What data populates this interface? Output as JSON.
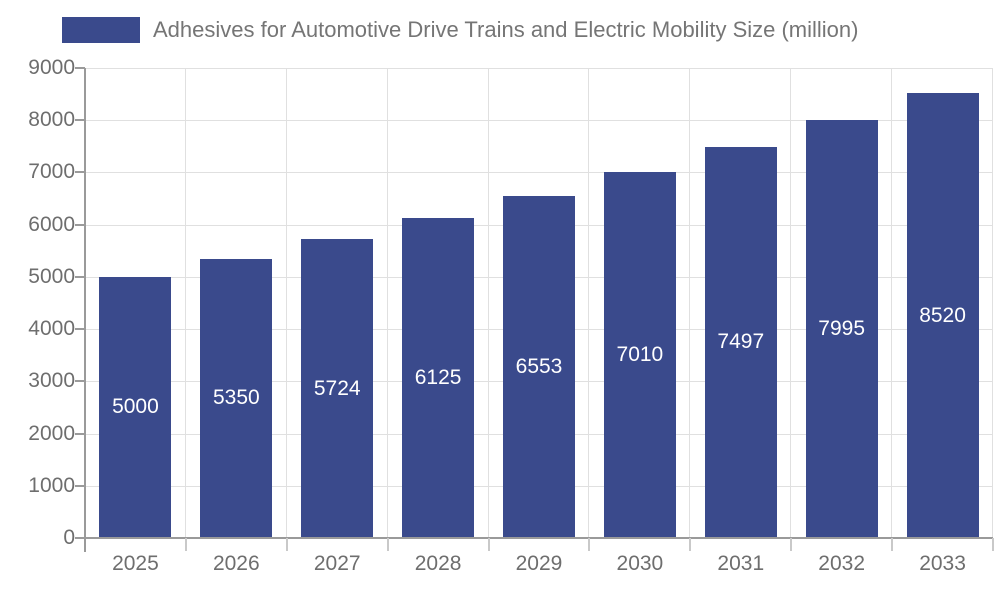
{
  "legend": {
    "label": "Adhesives for Automotive Drive Trains and Electric Mobility Size (million)",
    "swatch_color": "#3a4a8c"
  },
  "chart_data": {
    "type": "bar",
    "title": "",
    "xlabel": "",
    "ylabel": "",
    "categories": [
      "2025",
      "2026",
      "2027",
      "2028",
      "2029",
      "2030",
      "2031",
      "2032",
      "2033"
    ],
    "values": [
      5000,
      5350,
      5724,
      6125,
      6553,
      7010,
      7497,
      7995,
      8520
    ],
    "series_name": "Adhesives for Automotive Drive Trains and Electric Mobility Size (million)",
    "value_labels": [
      "5000",
      "5350",
      "5724",
      "6125",
      "6553",
      "7010",
      "7497",
      "7995",
      "8520"
    ],
    "ylim": [
      0,
      9000
    ],
    "yticks": [
      0,
      1000,
      2000,
      3000,
      4000,
      5000,
      6000,
      7000,
      8000,
      9000
    ],
    "grid": true,
    "legend_position": "top-left",
    "colors": {
      "bar": "#3a4a8c",
      "value_label": "#ffffff",
      "gridline": "#e0e0e0",
      "axis": "#9a9a9a",
      "tick_text": "#6e6e6e",
      "legend_text": "#757575",
      "background": "#ffffff"
    }
  }
}
